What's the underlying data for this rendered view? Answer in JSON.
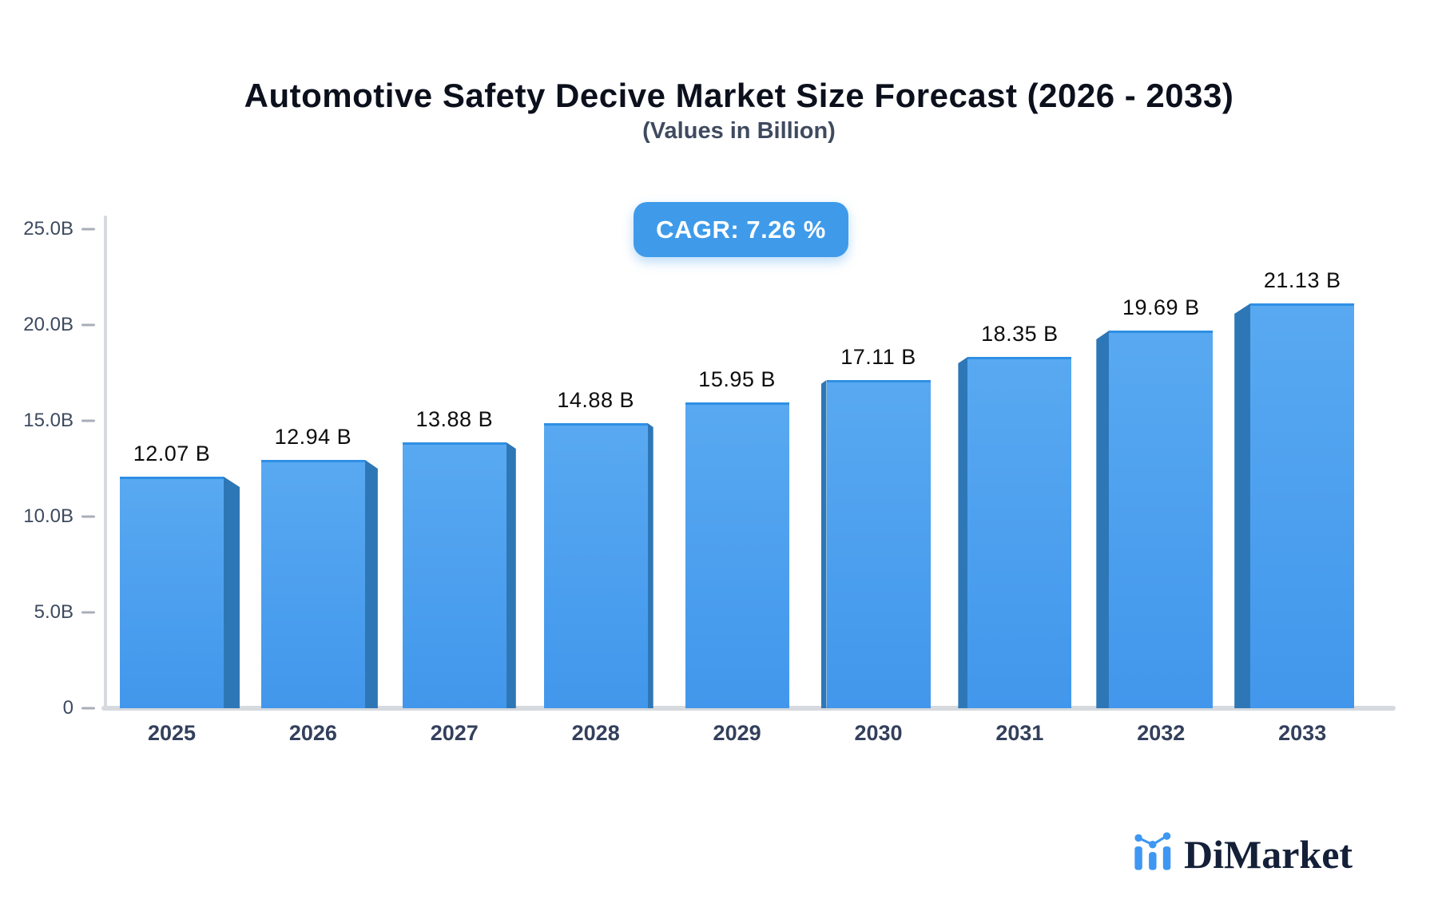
{
  "header": {
    "title": "Automotive Safety Decive Market Size Forecast (2026 - 2033)",
    "subtitle": "(Values in Billion)",
    "cagr_label": "CAGR: 7.26 %"
  },
  "brand": {
    "name": "DiMarket",
    "icon": "bar-line-chart-logo-icon"
  },
  "colors": {
    "bar_face_top": "#58a9f1",
    "bar_face_bottom": "#4297ec",
    "bar_top_edge": "#2f8fe4",
    "bar_side": "#2e77b6",
    "badge_bg": "#3f9bea",
    "badge_text": "#ffffff",
    "axis_line": "#d6d9dd",
    "tick_dash": "#a8aeb9",
    "y_label": "#3d4a5f",
    "x_label": "#33405c",
    "value_label": "#0d0d0f",
    "title": "#0b101c",
    "subtitle": "#3f4a5f",
    "brand_navy": "#141f38",
    "brand_blue": "#3e97f2"
  },
  "chart_data": {
    "type": "bar",
    "title": "Automotive Safety Decive Market Size Forecast (2026 - 2033)",
    "subtitle": "(Values in Billion)",
    "annotation": "CAGR: 7.26 %",
    "categories": [
      "2025",
      "2026",
      "2027",
      "2028",
      "2029",
      "2030",
      "2031",
      "2032",
      "2033"
    ],
    "values": [
      12.07,
      12.94,
      13.88,
      14.88,
      15.95,
      17.11,
      18.35,
      19.69,
      21.13
    ],
    "value_labels": [
      "12.07 B",
      "12.94 B",
      "13.88 B",
      "14.88 B",
      "15.95 B",
      "17.11 B",
      "18.35 B",
      "19.69 B",
      "21.13 B"
    ],
    "ylabel": "",
    "xlabel": "",
    "ylim": [
      0,
      25
    ],
    "y_ticks": [
      {
        "label": "25.0B",
        "value": 25
      },
      {
        "label": "20.0B",
        "value": 20
      },
      {
        "label": "15.0B",
        "value": 15
      },
      {
        "label": "10.0B",
        "value": 10
      },
      {
        "label": "5.0B",
        "value": 5
      },
      {
        "label": "0",
        "value": 0
      }
    ],
    "grid": false,
    "legend": "none",
    "style": "3d-perspective-bars, vanishing point at center bar"
  }
}
